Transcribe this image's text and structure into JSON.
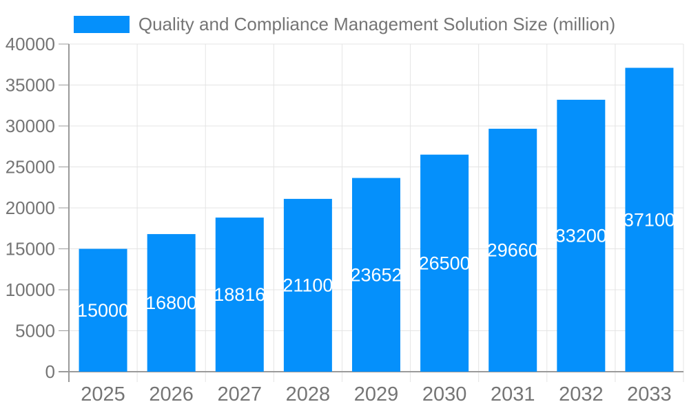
{
  "chart_data": {
    "type": "bar",
    "title": "Quality and Compliance Management Solution Size (million)",
    "categories": [
      "2025",
      "2026",
      "2027",
      "2028",
      "2029",
      "2030",
      "2031",
      "2032",
      "2033"
    ],
    "values": [
      15000,
      16800,
      18816,
      21100,
      23652,
      26500,
      29660,
      33200,
      37100
    ],
    "xlabel": "",
    "ylabel": "",
    "ylim": [
      0,
      40000
    ],
    "yticks": [
      0,
      5000,
      10000,
      15000,
      20000,
      25000,
      30000,
      35000,
      40000
    ],
    "grid": true,
    "legend_position": "top",
    "value_label_position": "inside-center",
    "colors": {
      "bar": "#0590fb",
      "value_label": "#ffffff",
      "axis": "#9a9a9a",
      "grid": "#e4e4e4",
      "text": "#757575"
    }
  }
}
